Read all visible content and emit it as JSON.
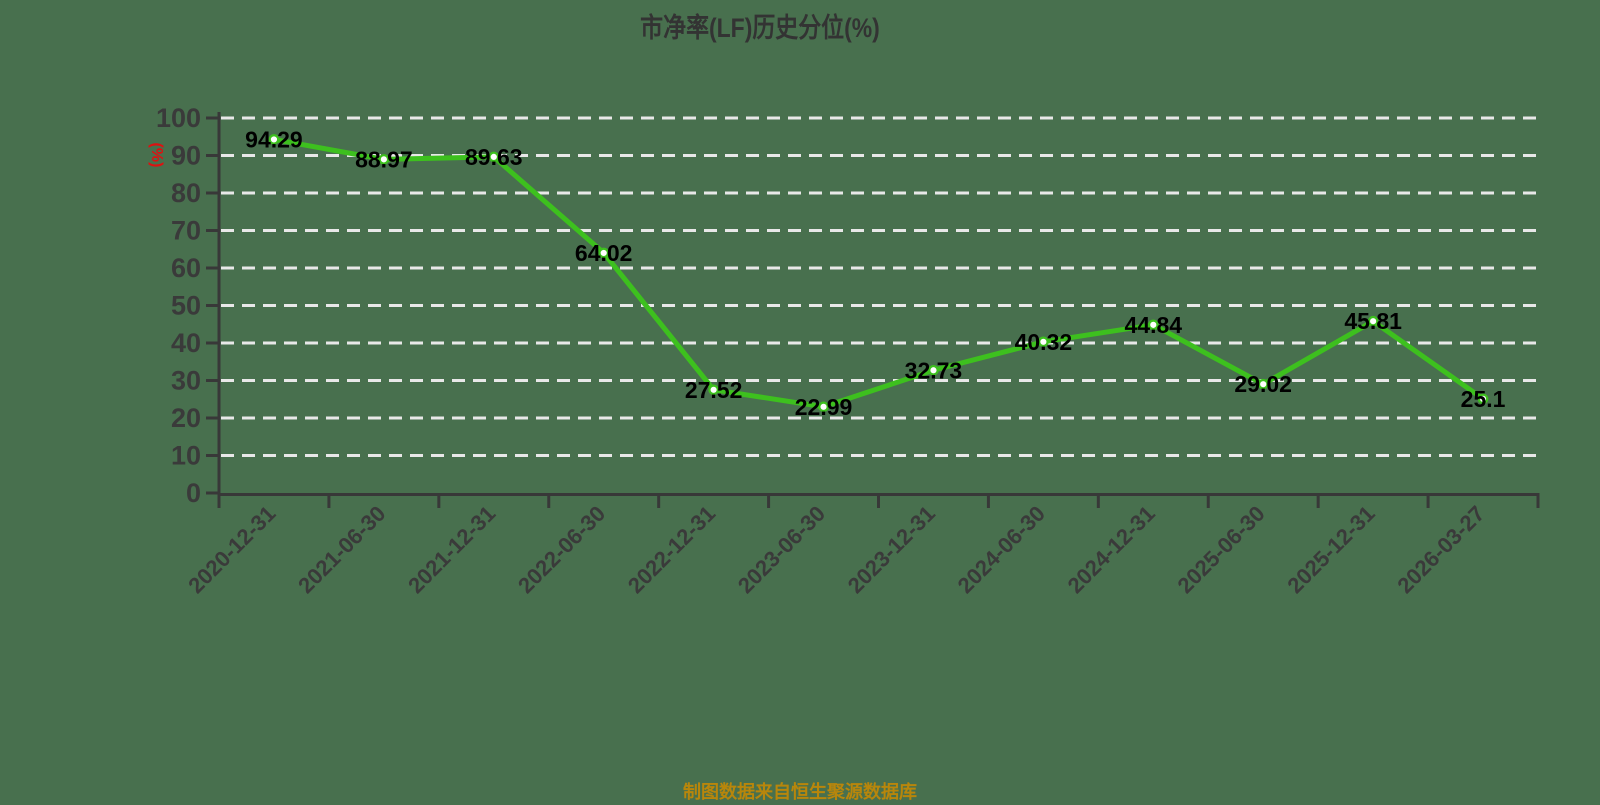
{
  "page": {
    "title": "市净率(LF)历史分位(%)",
    "y_axis_unit": "(%)",
    "footer_note": "制图数据来自恒生聚源数据库"
  },
  "chart_data": {
    "type": "line",
    "title": "市净率(LF)历史分位(%)",
    "xlabel": "",
    "ylabel": "(%)",
    "categories": [
      "2020-12-31",
      "2021-06-30",
      "2021-12-31",
      "2022-06-30",
      "2022-12-31",
      "2023-06-30",
      "2023-12-31",
      "2024-06-30",
      "2024-12-31",
      "2025-06-30",
      "2025-12-31",
      "2026-03-27"
    ],
    "values": [
      94.29,
      88.97,
      89.63,
      64.02,
      27.52,
      22.99,
      32.73,
      40.32,
      44.84,
      29.02,
      45.81,
      25.1
    ],
    "ylim": [
      0,
      100
    ],
    "yticks": [
      0,
      10,
      20,
      30,
      40,
      50,
      60,
      70,
      80,
      90,
      100
    ],
    "grid": "horizontal-dashed",
    "legend": "none",
    "value_labels": "centered-on-points",
    "source_note": "制图数据来自恒生聚源数据库"
  },
  "colors": {
    "background": "#48704E",
    "line": "#3DC01E",
    "marker_fill": "#FFFFFF",
    "marker_ring": "#3DC01E",
    "gridline": "#E8E8E8",
    "axis": "#383838",
    "axis_tick_label": "#3A3A3A",
    "value_label": "#000000",
    "title": "#333333",
    "y_axis_unit": "#E01010",
    "footer_note": "#B8860B"
  }
}
